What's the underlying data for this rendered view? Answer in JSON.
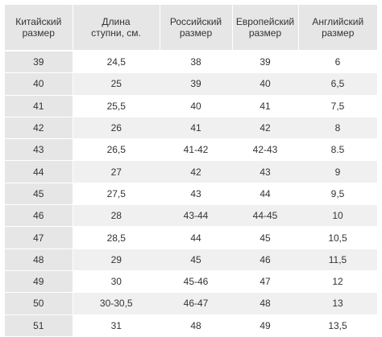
{
  "table": {
    "headers": [
      [
        "Китайский",
        "размер"
      ],
      [
        "Длина",
        "ступни, см."
      ],
      [
        "Российский",
        "размер"
      ],
      [
        "Европейский",
        "размер"
      ],
      [
        "Английский",
        "размер"
      ]
    ],
    "rows": [
      [
        "39",
        "24,5",
        "38",
        "39",
        "6"
      ],
      [
        "40",
        "25",
        "39",
        "40",
        "6,5"
      ],
      [
        "41",
        "25,5",
        "40",
        "41",
        "7,5"
      ],
      [
        "42",
        "26",
        "41",
        "42",
        "8"
      ],
      [
        "43",
        "26,5",
        "41-42",
        "42-43",
        "8.5"
      ],
      [
        "44",
        "27",
        "42",
        "43",
        "9"
      ],
      [
        "45",
        "27,5",
        "43",
        "44",
        "9,5"
      ],
      [
        "46",
        "28",
        "43-44",
        "44-45",
        "10"
      ],
      [
        "47",
        "28,5",
        "44",
        "45",
        "10,5"
      ],
      [
        "48",
        "29",
        "45",
        "46",
        "11,5"
      ],
      [
        "49",
        "30",
        "45-46",
        "47",
        "12"
      ],
      [
        "50",
        "30-30,5",
        "46-47",
        "48",
        "13"
      ],
      [
        "51",
        "31",
        "48",
        "49",
        "13,5"
      ]
    ]
  }
}
